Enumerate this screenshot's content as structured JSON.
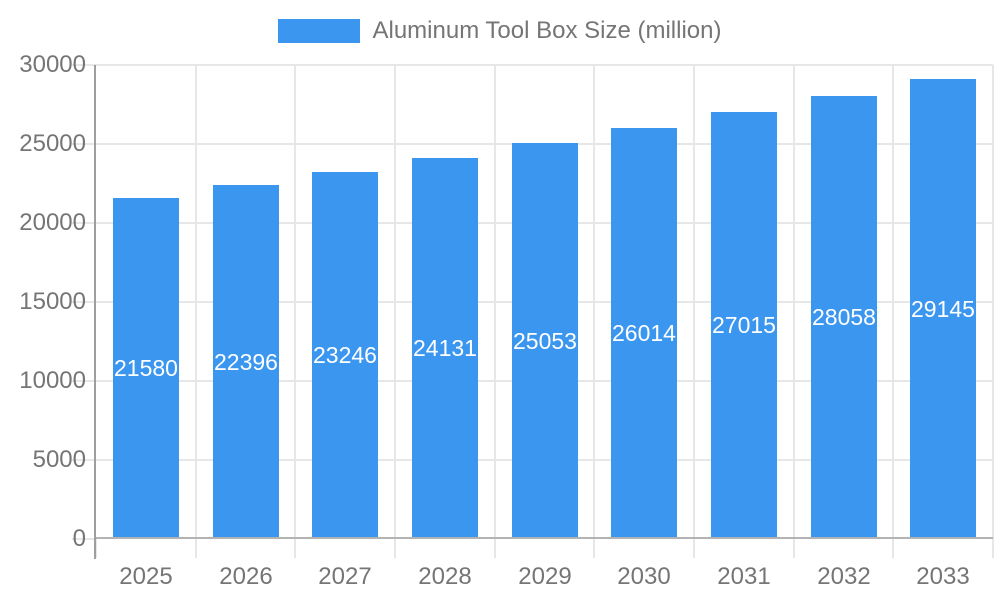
{
  "chart_data": {
    "type": "bar",
    "title": "Aluminum Tool Box Size (million)",
    "categories": [
      "2025",
      "2026",
      "2027",
      "2028",
      "2029",
      "2030",
      "2031",
      "2032",
      "2033"
    ],
    "series": [
      {
        "name": "Aluminum Tool Box Size (million)",
        "values": [
          21580,
          22396,
          23246,
          24131,
          25053,
          26014,
          27015,
          28058,
          29145
        ]
      }
    ],
    "value_labels": [
      "21580",
      "22396",
      "23246",
      "24131",
      "25053",
      "26014",
      "27015",
      "28058",
      "29145"
    ],
    "xlabel": "",
    "ylabel": "",
    "ylim": [
      0,
      30000
    ],
    "yticks": [
      0,
      5000,
      10000,
      15000,
      20000,
      25000,
      30000
    ],
    "ytick_labels": [
      "0",
      "5000",
      "10000",
      "15000",
      "20000",
      "25000",
      "30000"
    ],
    "grid": true,
    "legend_position": "top-center",
    "value_label_position": "inside-middle",
    "colors": {
      "bar": "#3B96F0",
      "value_label": "#FFFFFF",
      "axis_text": "#757575",
      "gridline": "#E7E7E7",
      "axis_line_y": "#9E9E9E",
      "axis_line_x": "#B3B3B3",
      "background": "#FFFFFF"
    }
  }
}
